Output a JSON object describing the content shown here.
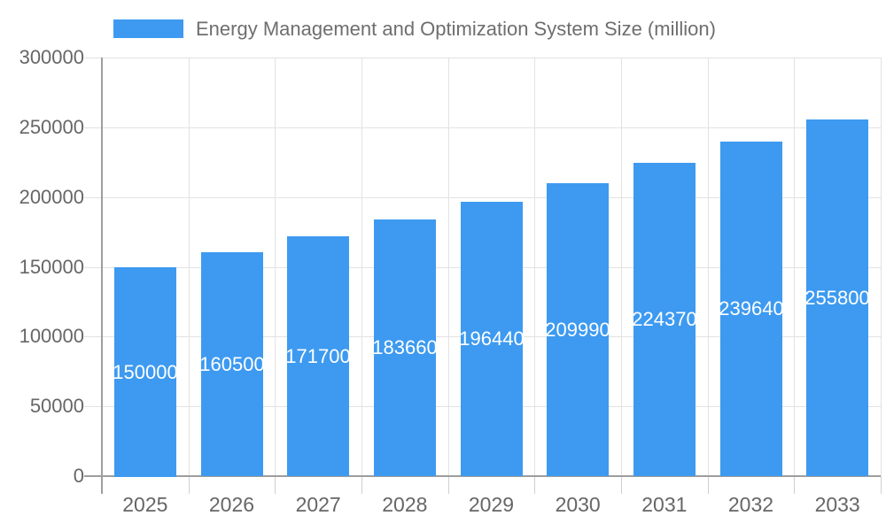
{
  "colors": {
    "bar": "#3d9af0",
    "grid": "#e2e2e2",
    "tick": "#cfcfcf",
    "axis_line": "#9e9e9e",
    "axis_text": "#666666",
    "legend_text": "#6e6e6e",
    "bar_label_text": "#ffffff"
  },
  "legend": {
    "label": "Energy Management and Optimization System Size (million)"
  },
  "chart_data": {
    "type": "bar",
    "title": "Energy Management and Optimization System Size (million)",
    "categories": [
      "2025",
      "2026",
      "2027",
      "2028",
      "2029",
      "2030",
      "2031",
      "2032",
      "2033"
    ],
    "series": [
      {
        "name": "Energy Management and Optimization System Size (million)",
        "values": [
          150000,
          160500,
          171700,
          183660,
          196440,
          209990,
          224370,
          239640,
          255800
        ]
      }
    ],
    "value_labels": [
      "150000",
      "160500",
      "171700",
      "183660",
      "196440",
      "209990",
      "224370",
      "239640",
      "255800"
    ],
    "xlabel": "",
    "ylabel": "",
    "ylim": [
      0,
      300000
    ],
    "ytick_interval": 50000,
    "ytick_labels": [
      "0",
      "50000",
      "100000",
      "150000",
      "200000",
      "250000",
      "300000"
    ],
    "grid": "both",
    "legend_position": "top"
  }
}
